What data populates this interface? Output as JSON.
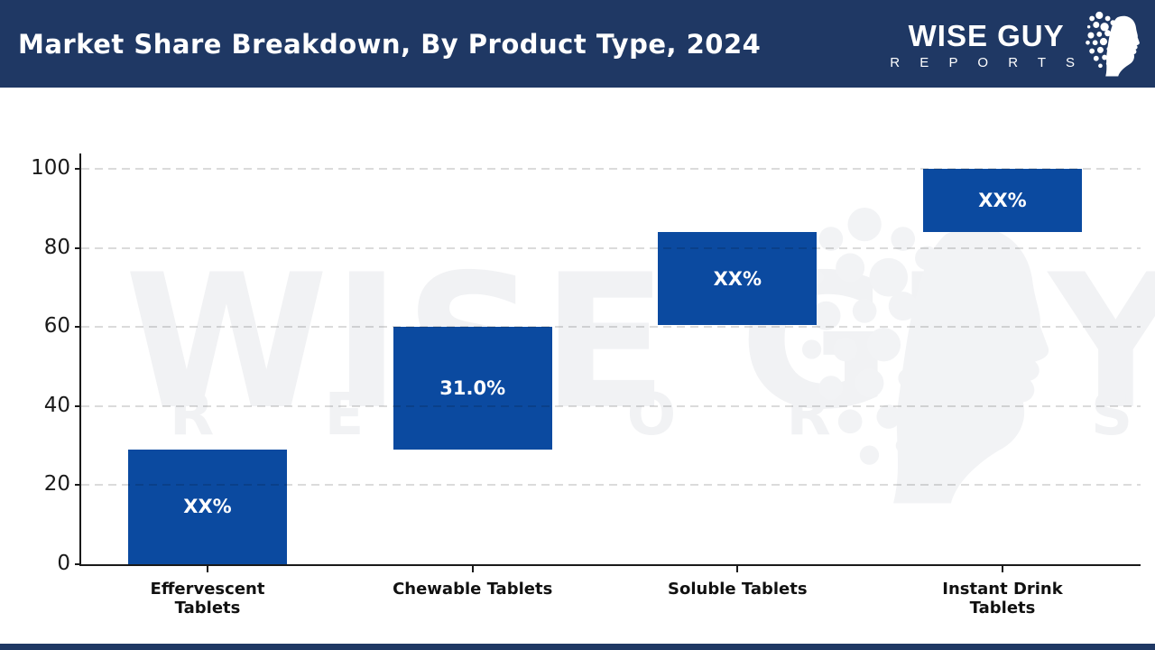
{
  "header": {
    "title": "Market Share Breakdown, By Product Type, 2024",
    "bg_color": "#1f3864",
    "text_color": "#ffffff",
    "brand": {
      "name": "WISE GUY",
      "subname": "R E P O R T S"
    }
  },
  "watermark": {
    "line1": "WISE GUY",
    "line2": "R E P O R T S",
    "color": "#f1f2f4"
  },
  "chart_data": {
    "type": "bar",
    "subtype": "waterfall",
    "title": "Market Share Breakdown, By Product Type, 2024",
    "xlabel": "",
    "ylabel": "",
    "categories": [
      "Effervescent Tablets",
      "Chewable Tablets",
      "Soluble Tablets",
      "Instant Drink Tablets"
    ],
    "tick_lines": [
      [
        "Effervescent",
        "Tablets"
      ],
      [
        "Chewable Tablets"
      ],
      [
        "Soluble Tablets"
      ],
      [
        "Instant Drink",
        "Tablets"
      ]
    ],
    "segments": [
      {
        "category": "Effervescent Tablets",
        "start": 0,
        "end": 29,
        "value": 29,
        "label": "XX%"
      },
      {
        "category": "Chewable Tablets",
        "start": 29,
        "end": 60,
        "value": 31,
        "label": "31.0%"
      },
      {
        "category": "Soluble Tablets",
        "start": 60.5,
        "end": 84,
        "value": 23.5,
        "label": "XX%"
      },
      {
        "category": "Instant Drink Tablets",
        "start": 84,
        "end": 100,
        "value": 16,
        "label": "XX%"
      }
    ],
    "y_ticks": [
      0,
      20,
      40,
      60,
      80,
      100
    ],
    "ylim": [
      0,
      104
    ],
    "grid": true,
    "grid_style": "dashed",
    "legend": false,
    "bar_color": "#0b4aa0",
    "bar_label_color": "#ffffff",
    "axis_color": "#1a1a1a"
  },
  "footer": {
    "bg_color": "#1f3864"
  }
}
